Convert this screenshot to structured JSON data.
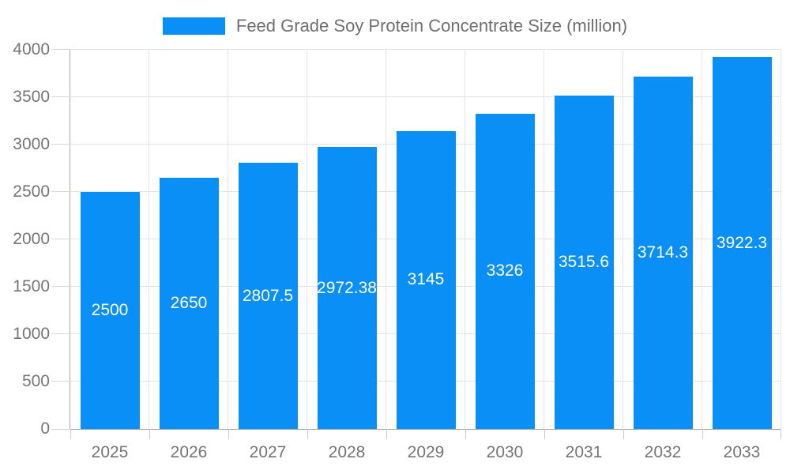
{
  "chart_data": {
    "type": "bar",
    "title": "Feed Grade Soy Protein Concentrate Size (million)",
    "categories": [
      "2025",
      "2026",
      "2027",
      "2028",
      "2029",
      "2030",
      "2031",
      "2032",
      "2033"
    ],
    "values": [
      2500,
      2650,
      2807.5,
      2972.38,
      3145,
      3326,
      3515.6,
      3714.3,
      3922.3
    ],
    "value_labels": [
      "2500",
      "2650",
      "2807.5",
      "2972.38",
      "3145",
      "3326",
      "3515.6",
      "3714.3",
      "3922.3"
    ],
    "xlabel": "",
    "ylabel": "",
    "ylim": [
      0,
      4000
    ],
    "ytick_step": 500,
    "yticks": [
      "0",
      "500",
      "1000",
      "1500",
      "2000",
      "2500",
      "3000",
      "3500",
      "4000"
    ],
    "grid": true,
    "legend_position": "top-center",
    "bar_color": "#0a8ff7",
    "grid_color": "#e3e3e3",
    "axis_color": "#a8a8a8",
    "label_color": "#757575",
    "bar_label_color": "#ffffff"
  }
}
